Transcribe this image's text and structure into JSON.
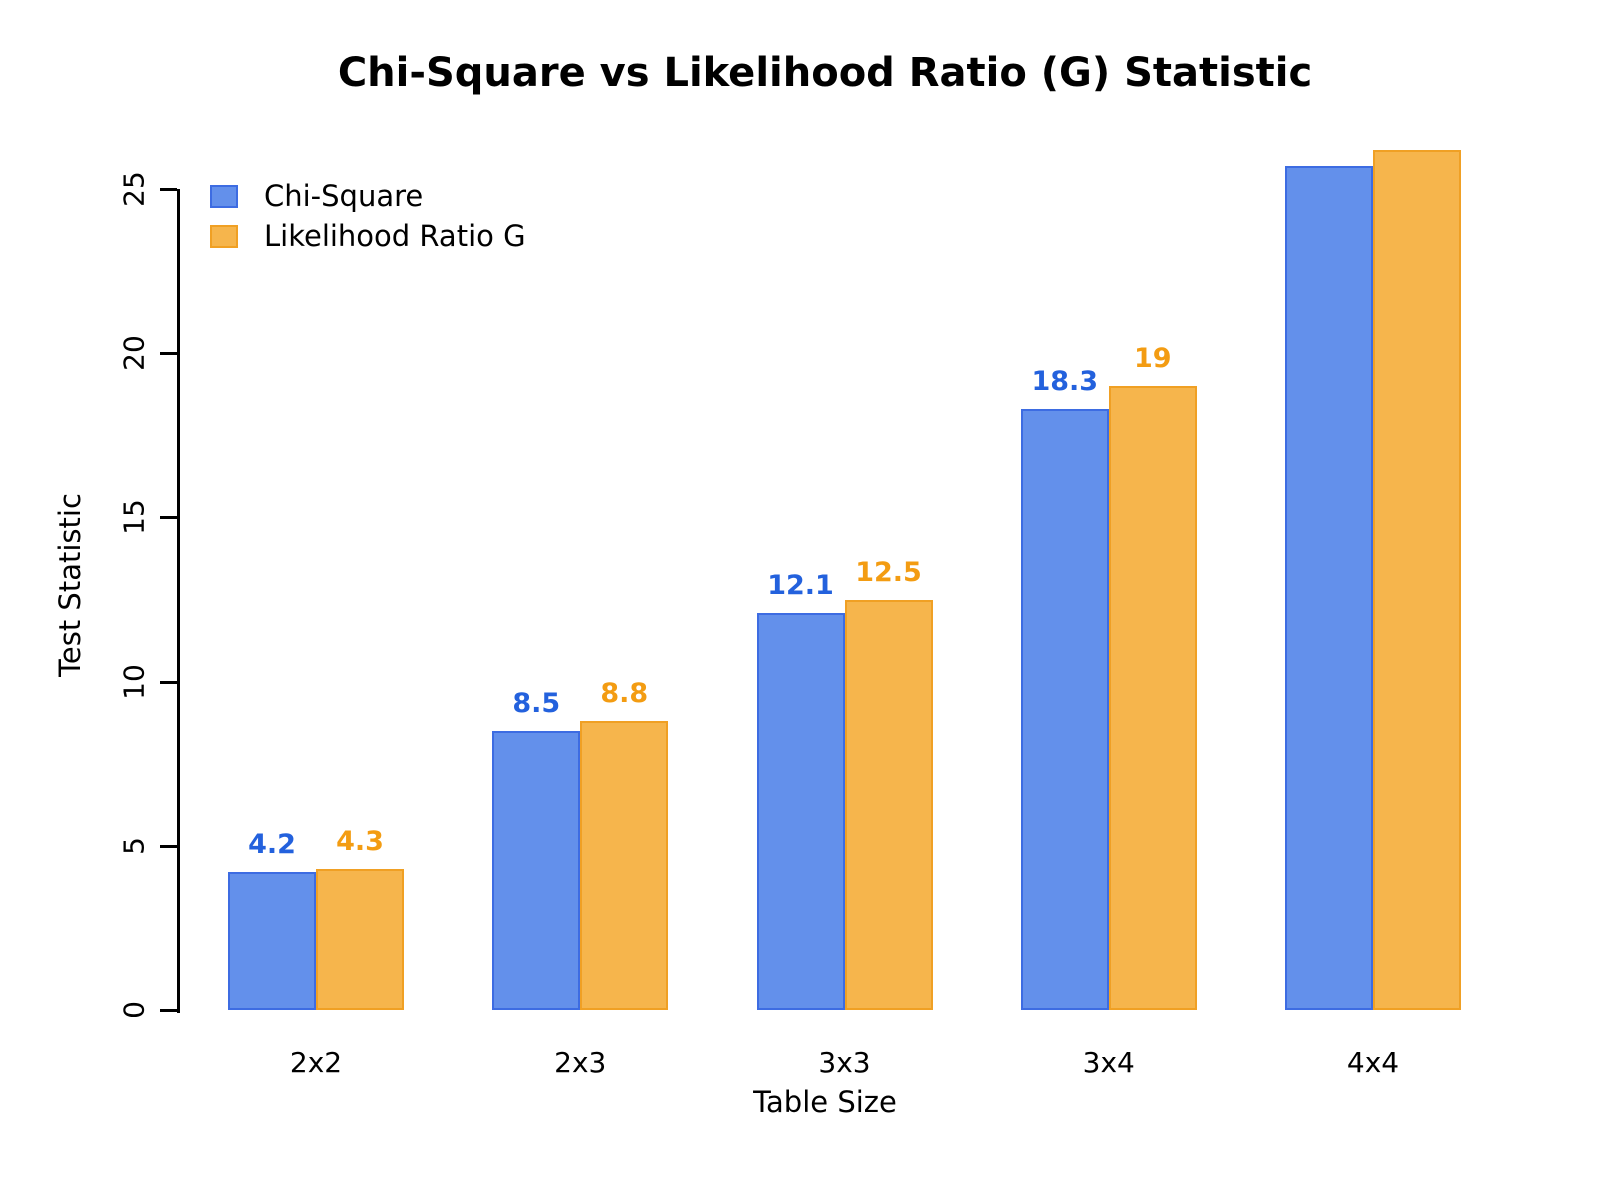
{
  "chart_data": {
    "type": "bar",
    "title": "Chi-Square vs Likelihood Ratio (G) Statistic",
    "xlabel": "Table Size",
    "ylabel": "Test Statistic",
    "categories": [
      "2x2",
      "2x3",
      "3x3",
      "3x4",
      "4x4"
    ],
    "series": [
      {
        "name": "Chi-Square",
        "fill": "#6390EB",
        "border": "#3D6CE2",
        "label_color": "#2361DD",
        "values": [
          4.2,
          8.5,
          12.1,
          18.3,
          25.7
        ],
        "value_labels": [
          "4.2",
          "8.5",
          "12.1",
          "18.3",
          ""
        ]
      },
      {
        "name": "Likelihood Ratio G",
        "fill": "#F6B54C",
        "border": "#F0A024",
        "label_color": "#F39C12",
        "values": [
          4.3,
          8.8,
          12.5,
          19,
          26.2
        ],
        "value_labels": [
          "4.3",
          "8.8",
          "12.5",
          "19",
          ""
        ]
      }
    ],
    "y_ticks": [
      0,
      5,
      10,
      15,
      20,
      25
    ],
    "ylim": [
      0,
      26.5
    ],
    "grid": false,
    "legend_position": "top-left"
  }
}
